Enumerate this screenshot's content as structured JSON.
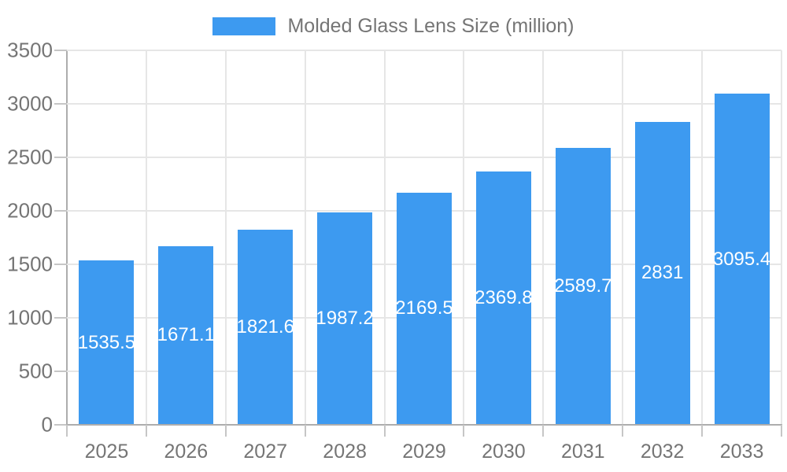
{
  "chart_data": {
    "type": "bar",
    "legend": [
      "Molded Glass Lens Size (million)"
    ],
    "legend_position": "top",
    "categories": [
      "2025",
      "2026",
      "2027",
      "2028",
      "2029",
      "2030",
      "2031",
      "2032",
      "2033"
    ],
    "values": [
      1535.5,
      1671.1,
      1821.6,
      1987.2,
      2169.5,
      2369.8,
      2589.7,
      2831,
      3095.4
    ],
    "value_labels": [
      "1535.5",
      "1671.1",
      "1821.6",
      "1987.2",
      "2169.5",
      "2369.8",
      "2589.7",
      "2831",
      "3095.4"
    ],
    "ylim": [
      0,
      3500
    ],
    "y_tick_step": 500,
    "y_tick_labels": [
      "0",
      "500",
      "1000",
      "1500",
      "2000",
      "2500",
      "3000",
      "3500"
    ],
    "grid": true,
    "colors": {
      "bar": "#3D9AF0",
      "text": "#757575",
      "value_label": "#FFFFFF",
      "grid_line": "#E6E6E6",
      "axis_line": "#ADADAD",
      "tick_mark": "#C6C6C6",
      "background": "#FFFFFF"
    }
  }
}
